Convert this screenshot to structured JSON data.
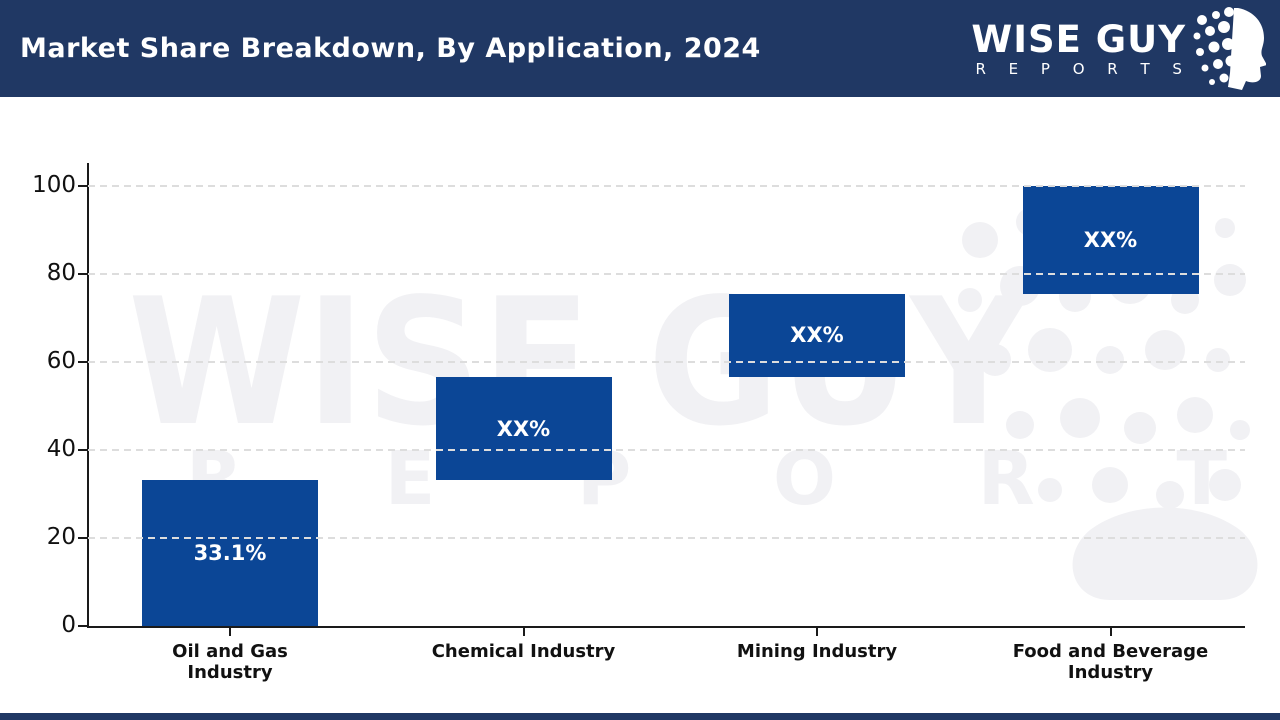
{
  "header": {
    "title": "Market Share Breakdown, By Application, 2024",
    "bg_color": "#203864",
    "logo": {
      "line1": "WISE GUY",
      "line2": "R E P O R T S"
    }
  },
  "watermark": {
    "line1": "WISE GUY",
    "line2": "R E P O R T S"
  },
  "icons": {
    "logo_head": "face-profile-made-of-dots",
    "watermark_face": "face-profile-made-of-dots"
  },
  "chart_data": {
    "type": "bar",
    "subtype": "waterfall",
    "title": "Market Share Breakdown, By Application, 2024",
    "categories": [
      "Oil and Gas Industry",
      "Chemical Industry",
      "Mining Industry",
      "Food and Beverage Industry"
    ],
    "category_lines": [
      [
        "Oil and Gas",
        "Industry"
      ],
      [
        "Chemical Industry"
      ],
      [
        "Mining Industry"
      ],
      [
        "Food and Beverage",
        "Industry"
      ]
    ],
    "bars": [
      {
        "category": "Oil and Gas Industry",
        "start": 0,
        "end": 33.1,
        "value": 33.1,
        "label": "33.1%"
      },
      {
        "category": "Chemical Industry",
        "start": 33.1,
        "end": 56.6,
        "value": 23.5,
        "label": "XX%"
      },
      {
        "category": "Mining Industry",
        "start": 56.6,
        "end": 75.5,
        "value": 18.9,
        "label": "XX%"
      },
      {
        "category": "Food and Beverage Industry",
        "start": 75.5,
        "end": 100,
        "value": 24.5,
        "label": "XX%"
      }
    ],
    "yticks": [
      0,
      20,
      40,
      60,
      80,
      100
    ],
    "ylim": [
      0,
      105
    ],
    "xlabel": "",
    "ylabel": "",
    "bar_color": "#0b4696",
    "grid": "dashed-horizontal",
    "legend": "none"
  }
}
